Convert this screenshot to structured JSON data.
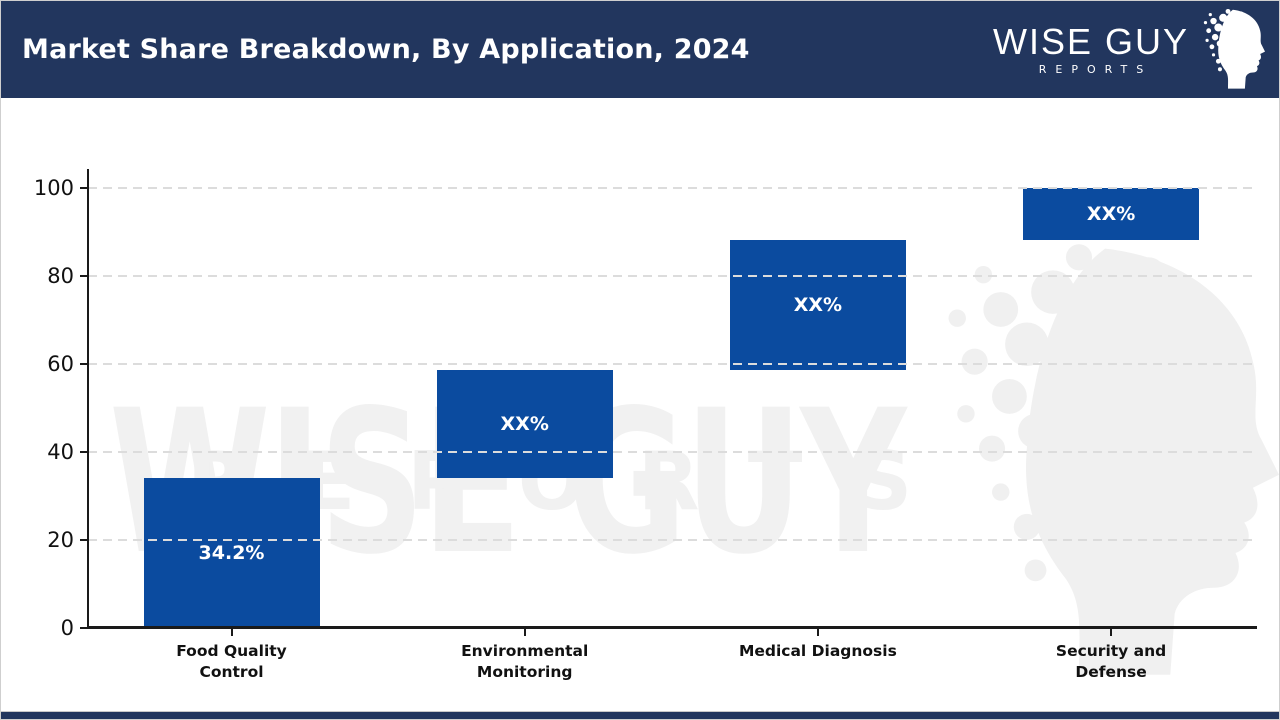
{
  "header": {
    "title": "Market Share Breakdown, By Application, 2024",
    "bg_color": "#22365E",
    "logo": {
      "line1": "WISE GUY",
      "line2": "REPORTS"
    }
  },
  "watermark": {
    "line1": "WISE GUY",
    "line2": "REPORTS"
  },
  "footer": {
    "bg_color": "#22365E"
  },
  "chart_data": {
    "type": "bar",
    "subtype": "waterfall-floating-bars",
    "title": "Market Share Breakdown, By Application, 2024",
    "xlabel": "",
    "ylabel": "",
    "ylim": [
      0,
      100
    ],
    "yticks": [
      0,
      20,
      40,
      60,
      80,
      100
    ],
    "grid": "dashed-horizontal",
    "legend": "none",
    "bar_color": "#0b4b9f",
    "categories": [
      "Food Quality Control",
      "Environmental Monitoring",
      "Medical Diagnosis",
      "Security and Defense"
    ],
    "category_label_lines": [
      [
        "Food Quality",
        "Control"
      ],
      [
        "Environmental",
        "Monitoring"
      ],
      [
        "Medical Diagnosis"
      ],
      [
        "Security and",
        "Defense"
      ]
    ],
    "segments": [
      {
        "category": "Food Quality Control",
        "start": 0,
        "end": 34.2,
        "value_label": "34.2%"
      },
      {
        "category": "Environmental Monitoring",
        "start": 34.2,
        "end": 58.6,
        "value_label": "XX%"
      },
      {
        "category": "Medical Diagnosis",
        "start": 58.6,
        "end": 88.2,
        "value_label": "XX%"
      },
      {
        "category": "Security and Defense",
        "start": 88.2,
        "end": 100,
        "value_label": "XX%"
      }
    ]
  }
}
